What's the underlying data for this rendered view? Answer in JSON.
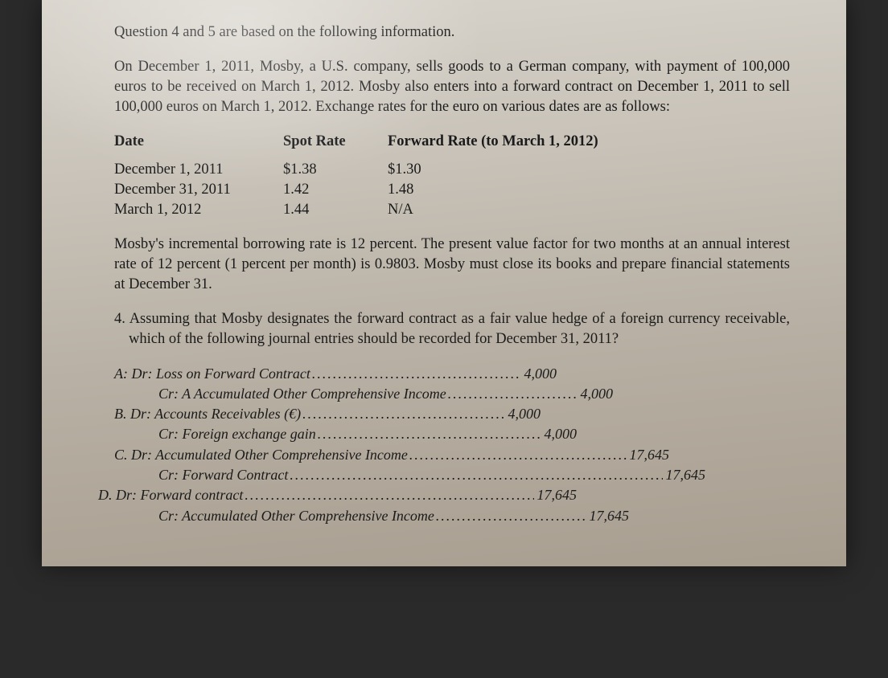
{
  "intro": "Question 4 and 5 are based on the following information.",
  "scenario": "On December 1, 2011, Mosby, a U.S. company, sells goods to a German company, with payment of 100,000 euros to be received on March 1, 2012. Mosby also enters into a forward contract on December 1, 2011 to sell 100,000 euros on March 1, 2012. Exchange rates for the euro on various dates are as follows:",
  "table": {
    "headers": {
      "date": "Date",
      "spot": "Spot Rate",
      "fwd": "Forward Rate (to March 1, 2012)"
    },
    "rows": [
      {
        "date": "December 1, 2011",
        "spot": "$1.38",
        "fwd": "$1.30"
      },
      {
        "date": "December 31, 2011",
        "spot": "1.42",
        "fwd": "1.48"
      },
      {
        "date": "March 1, 2012",
        "spot": "1.44",
        "fwd": "N/A"
      }
    ]
  },
  "note": "Mosby's incremental borrowing rate is 12 percent. The present value factor for two months at an annual interest rate of 12 percent (1 percent per month) is 0.9803. Mosby must close its books and prepare financial statements at December 31.",
  "question": "4. Assuming that Mosby designates the forward contract as a fair value hedge of a foreign currency receivable, which of the following journal entries should be recorded for December 31, 2011?",
  "answers": {
    "a": {
      "dr_label": "A: Dr: Loss on Forward Contract",
      "dr_amt": "4,000",
      "cr_label": "Cr: A Accumulated Other Comprehensive Income",
      "cr_amt": "4,000"
    },
    "b": {
      "dr_label": "B. Dr: Accounts Receivables (€)",
      "dr_amt": "4,000",
      "cr_label": "Cr: Foreign exchange gain",
      "cr_amt": "4,000"
    },
    "c": {
      "dr_label": "C. Dr: Accumulated Other Comprehensive Income",
      "dr_amt": "17,645",
      "cr_label": "Cr: Forward Contract",
      "cr_amt": "17,645"
    },
    "d": {
      "dr_label": "D. Dr: Forward contract",
      "dr_amt": "17,645",
      "cr_label": "Cr: Accumulated Other Comprehensive Income",
      "cr_amt": "17,645"
    }
  }
}
